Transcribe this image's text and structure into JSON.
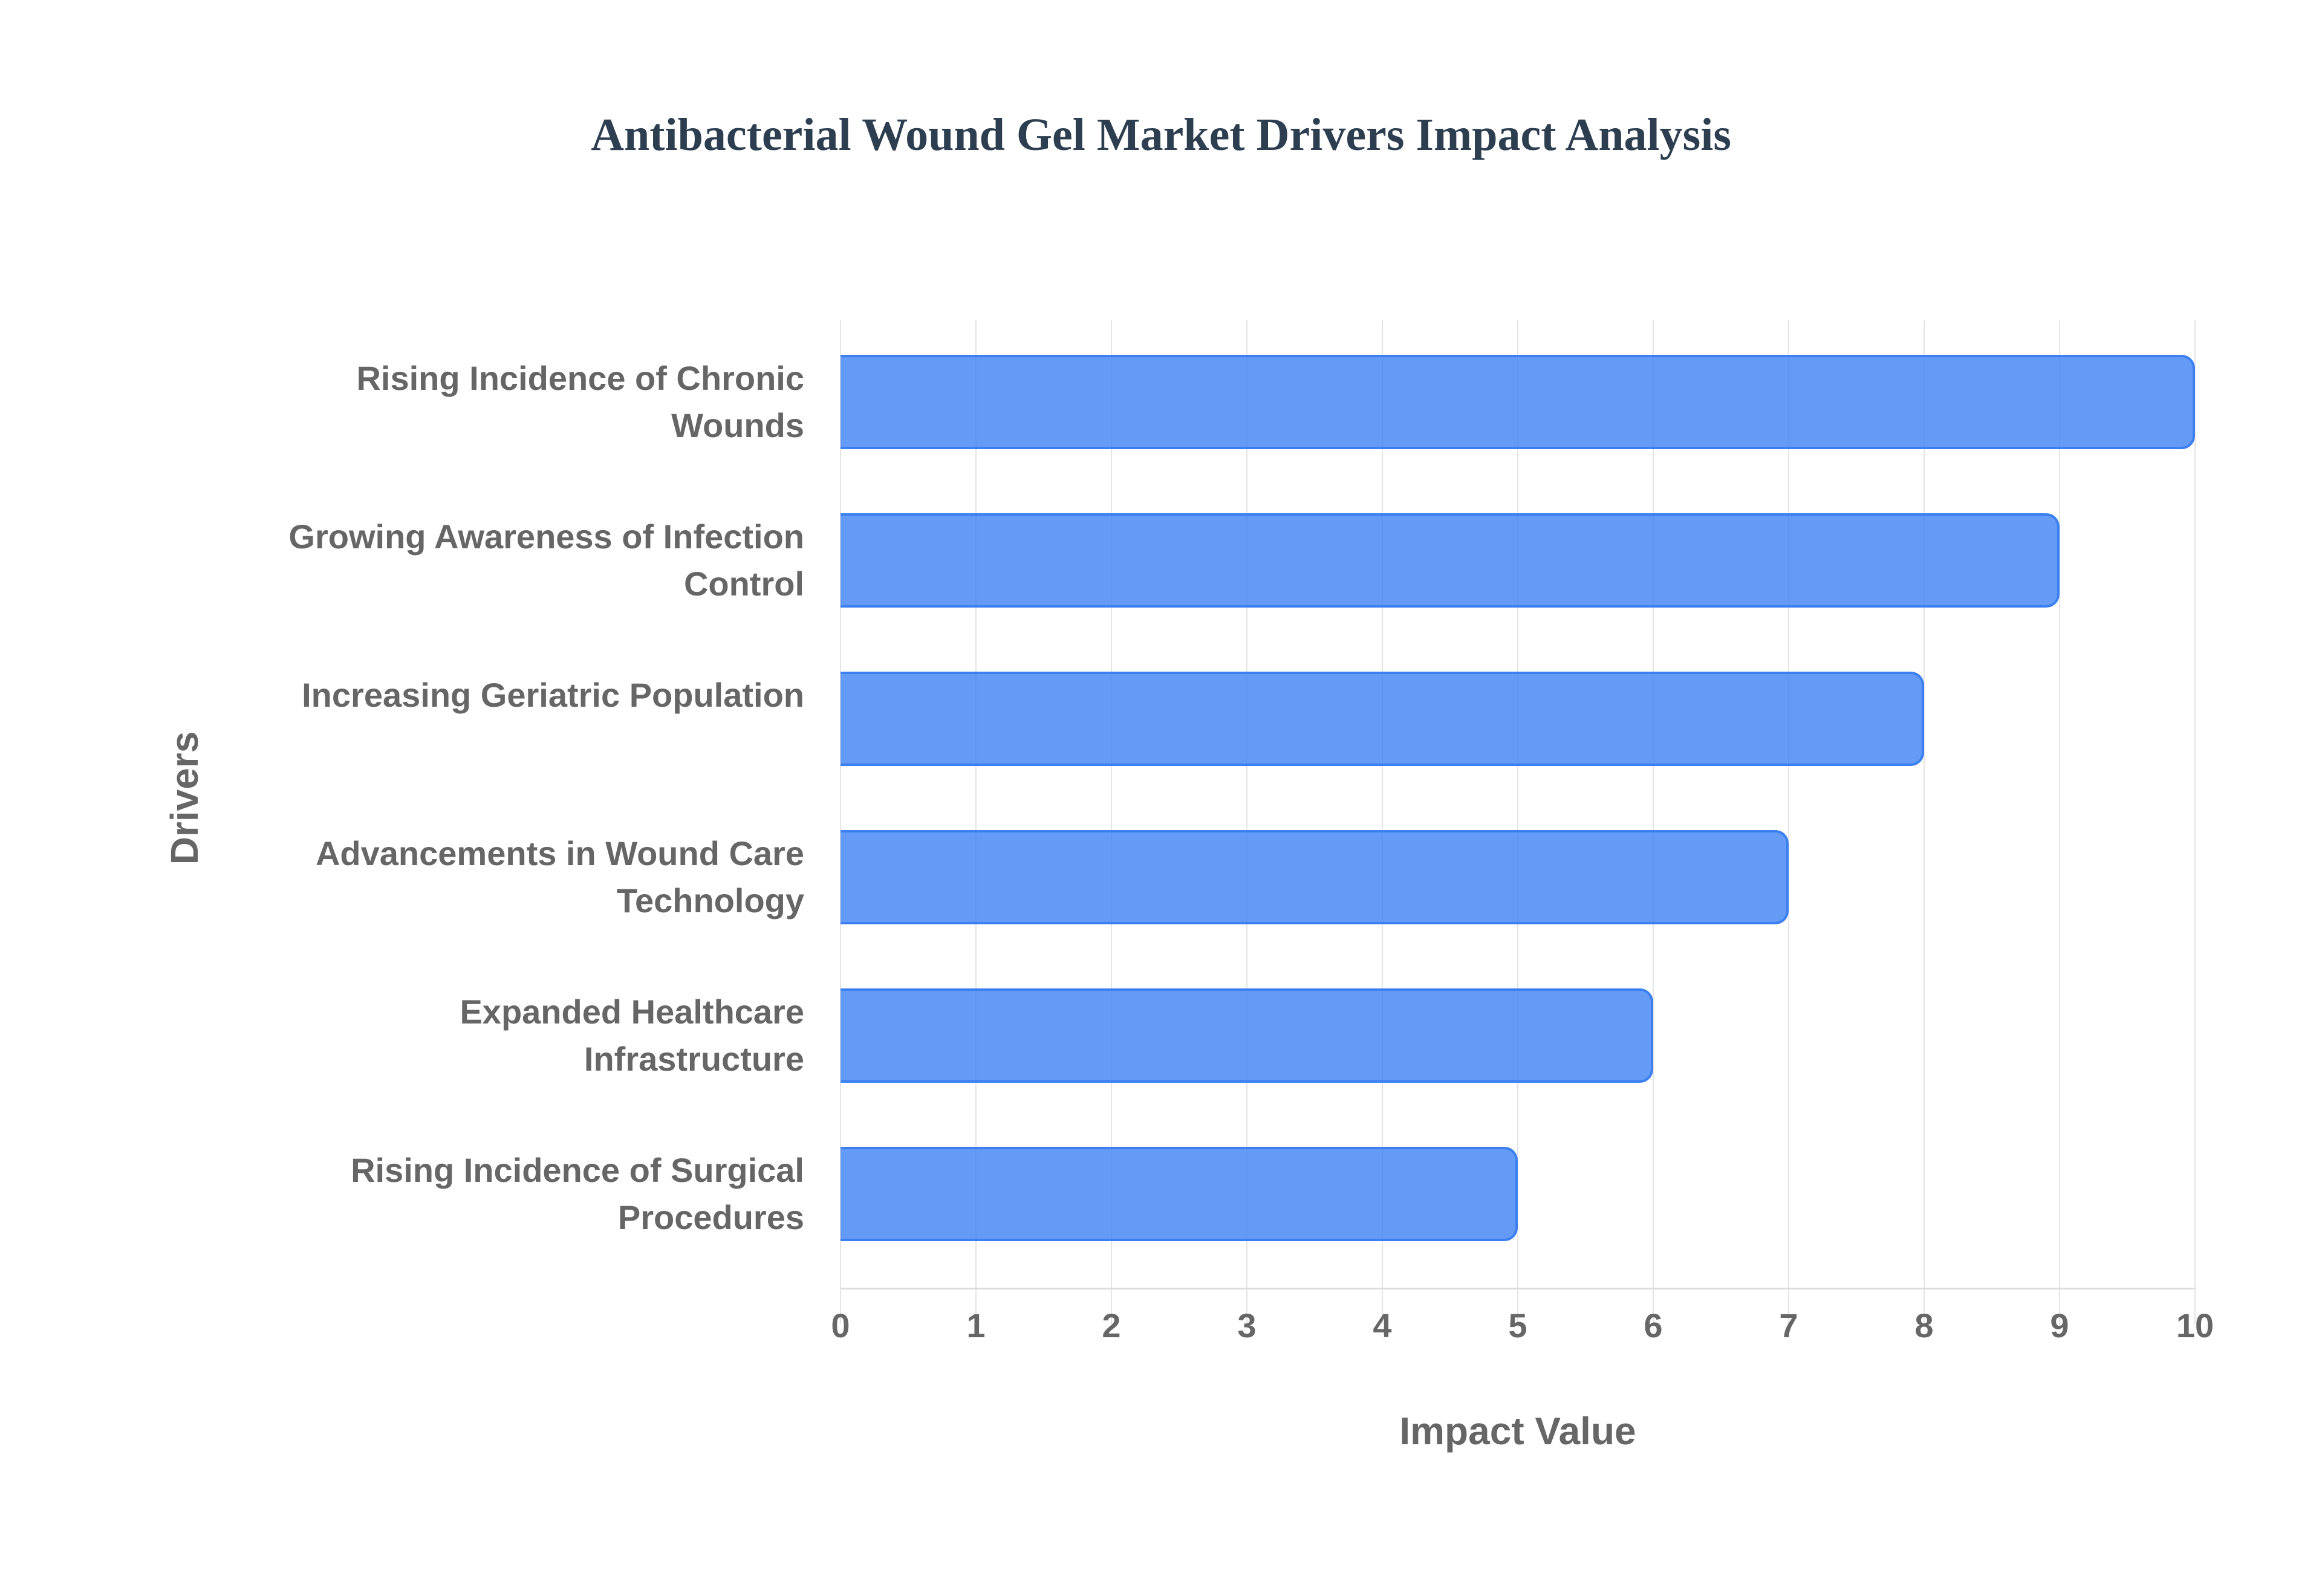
{
  "title": "Antibacterial Wound Gel Market Drivers Impact Analysis",
  "x_axis": {
    "title": "Impact Value",
    "ticks": [
      "0",
      "1",
      "2",
      "3",
      "4",
      "5",
      "6",
      "7",
      "8",
      "9",
      "10"
    ]
  },
  "y_axis": {
    "title": "Drivers"
  },
  "bars": [
    {
      "label": "Rising Incidence of Chronic Wounds",
      "value": 10
    },
    {
      "label": "Growing Awareness of Infection Control",
      "value": 9
    },
    {
      "label": "Increasing Geriatric Population",
      "value": 8
    },
    {
      "label": "Advancements in Wound Care Technology",
      "value": 7
    },
    {
      "label": "Expanded Healthcare Infrastructure",
      "value": 6
    },
    {
      "label": "Rising Incidence of Surgical Procedures",
      "value": 5
    }
  ],
  "colors": {
    "bar_fill": "#4285f4",
    "bar_border": "#3b7ff0",
    "title": "#2c3e50",
    "axis_text": "#666666"
  },
  "chart_data": {
    "type": "bar",
    "orientation": "horizontal",
    "title": "Antibacterial Wound Gel Market Drivers Impact Analysis",
    "categories": [
      "Rising Incidence of Chronic Wounds",
      "Growing Awareness of Infection Control",
      "Increasing Geriatric Population",
      "Advancements in Wound Care Technology",
      "Expanded Healthcare Infrastructure",
      "Rising Incidence of Surgical Procedures"
    ],
    "values": [
      10,
      9,
      8,
      7,
      6,
      5
    ],
    "xlabel": "Impact Value",
    "ylabel": "Drivers",
    "xlim": [
      0,
      10
    ],
    "grid": true,
    "legend": "none"
  }
}
